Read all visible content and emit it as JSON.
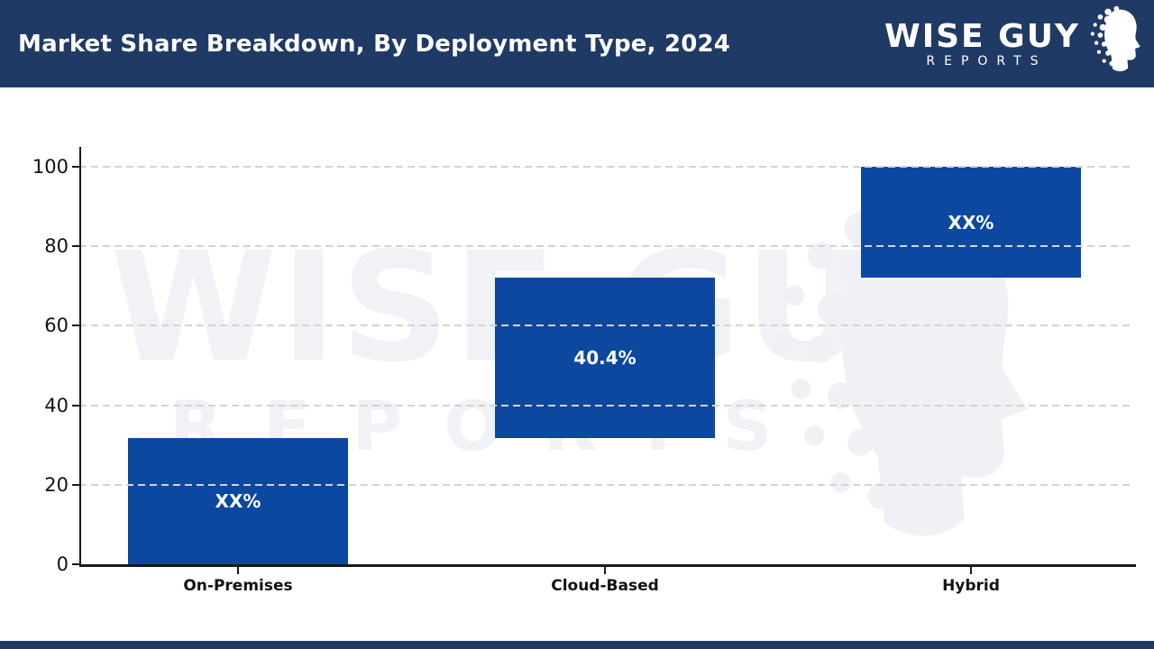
{
  "header": {
    "title": "Market Share Breakdown, By Deployment Type, 2024",
    "logo": {
      "line1": "WISE GUY",
      "line2": "REPORTS"
    }
  },
  "watermark": {
    "line1": "WISE GUY",
    "line2": "REPORTS"
  },
  "chart_data": {
    "type": "bar",
    "subtype": "floating_segment_waterfall",
    "title": "Market Share Breakdown, By Deployment Type, 2024",
    "categories": [
      "On-Premises",
      "Cloud-Based",
      "Hybrid"
    ],
    "segments": [
      {
        "category": "On-Premises",
        "start": 0,
        "end": 31.7,
        "label": "XX%"
      },
      {
        "category": "Cloud-Based",
        "start": 31.7,
        "end": 72.1,
        "label": "40.4%"
      },
      {
        "category": "Hybrid",
        "start": 72.1,
        "end": 100,
        "label": "XX%"
      }
    ],
    "ylim": [
      0,
      100
    ],
    "yticks": [
      0,
      20,
      40,
      60,
      80,
      100
    ],
    "xlabel": "",
    "ylabel": "",
    "grid": "horizontal dashed, drawn above bars",
    "legend": "none",
    "colors": {
      "bar": "#0c47a0",
      "bar_label": "#ffffff",
      "banner": "#203a66",
      "gridline": "#d3d3d3",
      "axis": "#1a1a1a",
      "watermark": "#f1f2f5"
    }
  }
}
